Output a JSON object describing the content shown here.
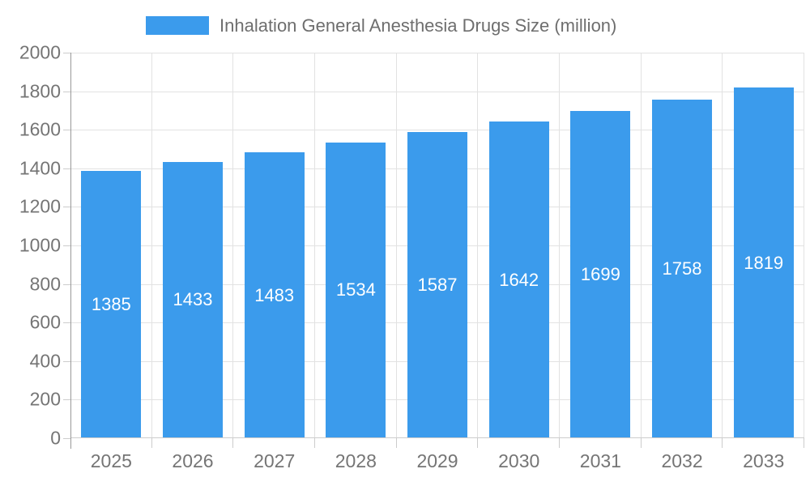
{
  "legend": {
    "label": "Inhalation General Anesthesia Drugs Size (million)"
  },
  "colors": {
    "bar": "#3B9BEC",
    "grid_line": "#E2E2E2",
    "tick_line": "#CCCCCC",
    "x_axis_line": "#CCCCCC",
    "y_axis_line": "#999999",
    "axis_text": "#757575",
    "legend_text": "#6E6E6E",
    "bar_label_text": "#FFFFFF"
  },
  "chart_data": {
    "type": "bar",
    "title": "",
    "series_name": "Inhalation General Anesthesia Drugs Size (million)",
    "categories": [
      "2025",
      "2026",
      "2027",
      "2028",
      "2029",
      "2030",
      "2031",
      "2032",
      "2033"
    ],
    "values": [
      1385,
      1433,
      1483,
      1534,
      1587,
      1642,
      1699,
      1758,
      1819
    ],
    "xlabel": "",
    "ylabel": "",
    "ylim": [
      0,
      2000
    ],
    "y_ticks": [
      0,
      200,
      400,
      600,
      800,
      1000,
      1200,
      1400,
      1600,
      1800,
      2000
    ],
    "grid": true,
    "legend_position": "top",
    "bar_label_position": "inside-center"
  }
}
